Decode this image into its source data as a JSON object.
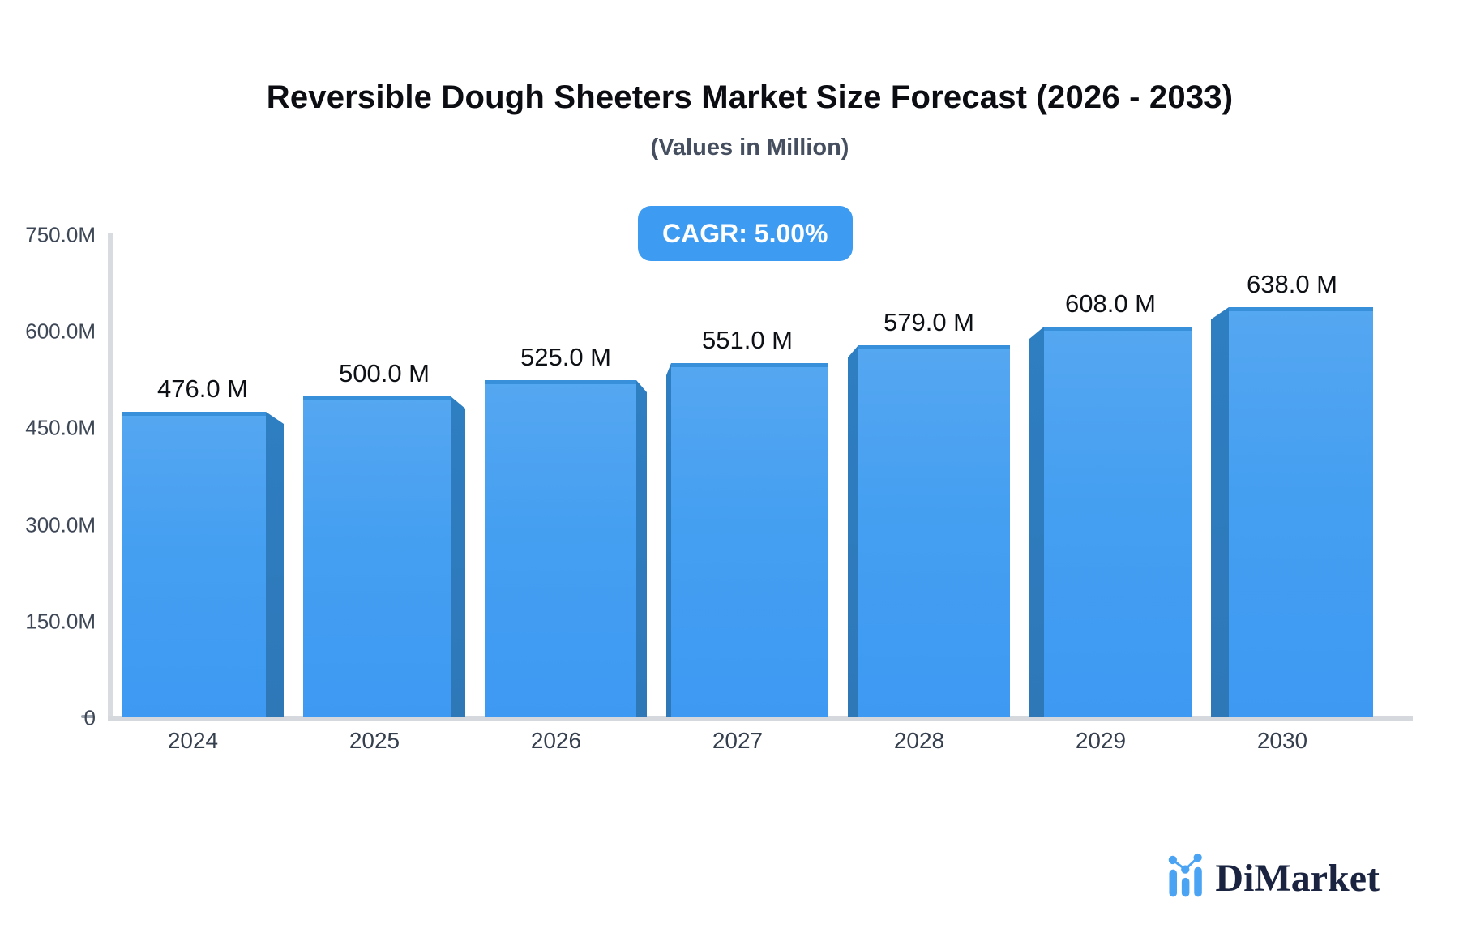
{
  "title": "Reversible Dough Sheeters Market Size Forecast (2026 - 2033)",
  "subtitle": "(Values in Million)",
  "cagr_badge": "CAGR: 5.00%",
  "logo": {
    "text": "DiMarket"
  },
  "colors": {
    "bar_face": "#459ff1",
    "bar_side": "#2e78b8",
    "bar_top_edge": "#358cd6",
    "badge_bg": "#3d9bf1",
    "axis_line": "#d8dbe0",
    "tick_text": "#3e4756",
    "value_text": "#0d1014",
    "logo_navy": "#1a2440",
    "logo_blue": "#4aa3f3"
  },
  "chart_data": {
    "type": "bar",
    "title": "Reversible Dough Sheeters Market Size Forecast (2026 - 2033)",
    "subtitle": "(Values in Million)",
    "unit": "Million",
    "categories": [
      "2024",
      "2025",
      "2026",
      "2027",
      "2028",
      "2029",
      "2030"
    ],
    "values": [
      476,
      500,
      525,
      551,
      579,
      608,
      638
    ],
    "value_labels": [
      "476.0 M",
      "500.0 M",
      "525.0 M",
      "551.0 M",
      "579.0 M",
      "608.0 M",
      "638.0 M"
    ],
    "cagr_percent": "5.00%",
    "y_ticks": [
      {
        "label": "750.0M",
        "value": 750
      },
      {
        "label": "600.0M",
        "value": 600
      },
      {
        "label": "450.0M",
        "value": 450
      },
      {
        "label": "300.0M",
        "value": 300
      },
      {
        "label": "150.0M",
        "value": 150
      },
      {
        "label": "0",
        "value": 0
      }
    ],
    "ylim": [
      0,
      750
    ],
    "grid": false,
    "legend": false,
    "style": "3d-perspective-blue"
  }
}
